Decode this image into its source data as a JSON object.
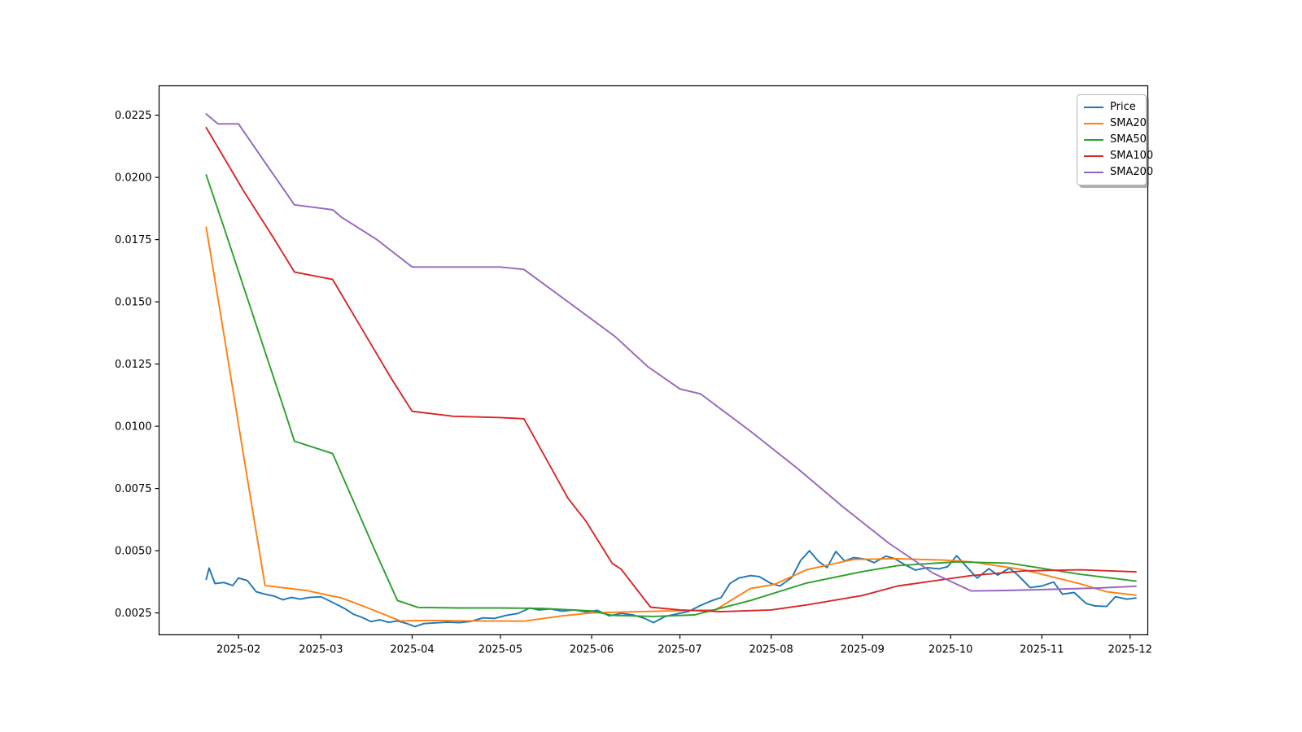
{
  "chart_data": {
    "type": "line",
    "title": "",
    "xlabel": "",
    "ylabel": "",
    "grid": false,
    "legend_position": "upper right",
    "xlim": [
      "2025-01-05",
      "2025-12-07"
    ],
    "ylim": [
      0.00162,
      0.02368
    ],
    "x_ticks": [
      {
        "date": "2025-02-01",
        "label": "2025-02"
      },
      {
        "date": "2025-03-01",
        "label": "2025-03"
      },
      {
        "date": "2025-04-01",
        "label": "2025-04"
      },
      {
        "date": "2025-05-01",
        "label": "2025-05"
      },
      {
        "date": "2025-06-01",
        "label": "2025-06"
      },
      {
        "date": "2025-07-01",
        "label": "2025-07"
      },
      {
        "date": "2025-08-01",
        "label": "2025-08"
      },
      {
        "date": "2025-09-01",
        "label": "2025-09"
      },
      {
        "date": "2025-10-01",
        "label": "2025-10"
      },
      {
        "date": "2025-11-01",
        "label": "2025-11"
      },
      {
        "date": "2025-12-01",
        "label": "2025-12"
      }
    ],
    "y_ticks": [
      {
        "value": 0.0025,
        "label": "0.0025"
      },
      {
        "value": 0.005,
        "label": "0.0050"
      },
      {
        "value": 0.0075,
        "label": "0.0075"
      },
      {
        "value": 0.01,
        "label": "0.0100"
      },
      {
        "value": 0.0125,
        "label": "0.0125"
      },
      {
        "value": 0.015,
        "label": "0.0150"
      },
      {
        "value": 0.0175,
        "label": "0.0175"
      },
      {
        "value": 0.02,
        "label": "0.0200"
      },
      {
        "value": 0.0225,
        "label": "0.0225"
      }
    ],
    "series": [
      {
        "name": "Price",
        "color": "#1f77b4",
        "points": [
          [
            "2025-01-21",
            0.00385
          ],
          [
            "2025-01-22",
            0.0043
          ],
          [
            "2025-01-24",
            0.00368
          ],
          [
            "2025-01-27",
            0.00372
          ],
          [
            "2025-01-30",
            0.0036
          ],
          [
            "2025-02-01",
            0.0039
          ],
          [
            "2025-02-04",
            0.0038
          ],
          [
            "2025-02-07",
            0.00335
          ],
          [
            "2025-02-10",
            0.00325
          ],
          [
            "2025-02-13",
            0.00318
          ],
          [
            "2025-02-16",
            0.00303
          ],
          [
            "2025-02-19",
            0.00312
          ],
          [
            "2025-02-22",
            0.00305
          ],
          [
            "2025-02-25",
            0.00312
          ],
          [
            "2025-03-01",
            0.00315
          ],
          [
            "2025-03-05",
            0.00292
          ],
          [
            "2025-03-09",
            0.00268
          ],
          [
            "2025-03-12",
            0.00245
          ],
          [
            "2025-03-15",
            0.00232
          ],
          [
            "2025-03-18",
            0.00215
          ],
          [
            "2025-03-21",
            0.00222
          ],
          [
            "2025-03-24",
            0.00212
          ],
          [
            "2025-03-27",
            0.00218
          ],
          [
            "2025-03-30",
            0.00208
          ],
          [
            "2025-04-02",
            0.00195
          ],
          [
            "2025-04-05",
            0.00207
          ],
          [
            "2025-04-09",
            0.0021
          ],
          [
            "2025-04-13",
            0.00213
          ],
          [
            "2025-04-17",
            0.00211
          ],
          [
            "2025-04-21",
            0.00216
          ],
          [
            "2025-04-25",
            0.0023
          ],
          [
            "2025-04-29",
            0.00228
          ],
          [
            "2025-05-03",
            0.0024
          ],
          [
            "2025-05-07",
            0.00248
          ],
          [
            "2025-05-11",
            0.0027
          ],
          [
            "2025-05-14",
            0.00262
          ],
          [
            "2025-05-18",
            0.00266
          ],
          [
            "2025-05-22",
            0.00257
          ],
          [
            "2025-05-26",
            0.00262
          ],
          [
            "2025-05-30",
            0.00254
          ],
          [
            "2025-06-03",
            0.0026
          ],
          [
            "2025-06-07",
            0.00238
          ],
          [
            "2025-06-11",
            0.00248
          ],
          [
            "2025-06-15",
            0.00242
          ],
          [
            "2025-06-19",
            0.00228
          ],
          [
            "2025-06-22",
            0.00211
          ],
          [
            "2025-06-26",
            0.00236
          ],
          [
            "2025-06-30",
            0.00246
          ],
          [
            "2025-07-04",
            0.00256
          ],
          [
            "2025-07-08",
            0.0028
          ],
          [
            "2025-07-12",
            0.003
          ],
          [
            "2025-07-15",
            0.00312
          ],
          [
            "2025-07-18",
            0.00368
          ],
          [
            "2025-07-21",
            0.0039
          ],
          [
            "2025-07-25",
            0.004
          ],
          [
            "2025-07-28",
            0.00396
          ],
          [
            "2025-08-01",
            0.00368
          ],
          [
            "2025-08-04",
            0.00358
          ],
          [
            "2025-08-08",
            0.00392
          ],
          [
            "2025-08-11",
            0.0046
          ],
          [
            "2025-08-14",
            0.005
          ],
          [
            "2025-08-17",
            0.00458
          ],
          [
            "2025-08-20",
            0.00432
          ],
          [
            "2025-08-23",
            0.00497
          ],
          [
            "2025-08-26",
            0.00458
          ],
          [
            "2025-08-29",
            0.00472
          ],
          [
            "2025-09-02",
            0.00466
          ],
          [
            "2025-09-05",
            0.00452
          ],
          [
            "2025-09-09",
            0.00478
          ],
          [
            "2025-09-12",
            0.00468
          ],
          [
            "2025-09-16",
            0.0044
          ],
          [
            "2025-09-19",
            0.00422
          ],
          [
            "2025-09-23",
            0.00432
          ],
          [
            "2025-09-27",
            0.00427
          ],
          [
            "2025-09-30",
            0.00436
          ],
          [
            "2025-10-03",
            0.0048
          ],
          [
            "2025-10-07",
            0.00428
          ],
          [
            "2025-10-10",
            0.0039
          ],
          [
            "2025-10-14",
            0.00428
          ],
          [
            "2025-10-17",
            0.00402
          ],
          [
            "2025-10-21",
            0.0043
          ],
          [
            "2025-10-24",
            0.004
          ],
          [
            "2025-10-28",
            0.00352
          ],
          [
            "2025-11-01",
            0.00358
          ],
          [
            "2025-11-05",
            0.00374
          ],
          [
            "2025-11-08",
            0.00325
          ],
          [
            "2025-11-12",
            0.00332
          ],
          [
            "2025-11-16",
            0.00288
          ],
          [
            "2025-11-19",
            0.00278
          ],
          [
            "2025-11-23",
            0.00276
          ],
          [
            "2025-11-26",
            0.00315
          ],
          [
            "2025-11-30",
            0.00305
          ],
          [
            "2025-12-03",
            0.0031
          ]
        ]
      },
      {
        "name": "SMA20",
        "color": "#ff7f0e",
        "points": [
          [
            "2025-01-21",
            0.018
          ],
          [
            "2025-01-27",
            0.0137
          ],
          [
            "2025-02-03",
            0.0086
          ],
          [
            "2025-02-10",
            0.0036
          ],
          [
            "2025-02-24",
            0.0034
          ],
          [
            "2025-03-08",
            0.0031
          ],
          [
            "2025-03-17",
            0.0027
          ],
          [
            "2025-03-28",
            0.00218
          ],
          [
            "2025-04-07",
            0.0022
          ],
          [
            "2025-04-21",
            0.00218
          ],
          [
            "2025-05-09",
            0.00217
          ],
          [
            "2025-05-22",
            0.00238
          ],
          [
            "2025-06-01",
            0.0025
          ],
          [
            "2025-06-14",
            0.00254
          ],
          [
            "2025-06-28",
            0.00258
          ],
          [
            "2025-07-13",
            0.00262
          ],
          [
            "2025-07-25",
            0.00348
          ],
          [
            "2025-08-02",
            0.00364
          ],
          [
            "2025-08-13",
            0.00423
          ],
          [
            "2025-08-29",
            0.00465
          ],
          [
            "2025-09-13",
            0.00468
          ],
          [
            "2025-09-29",
            0.00462
          ],
          [
            "2025-10-08",
            0.00455
          ],
          [
            "2025-10-26",
            0.00423
          ],
          [
            "2025-11-14",
            0.00367
          ],
          [
            "2025-11-23",
            0.00335
          ],
          [
            "2025-12-03",
            0.00321
          ]
        ]
      },
      {
        "name": "SMA50",
        "color": "#2ca02c",
        "points": [
          [
            "2025-01-21",
            0.0201
          ],
          [
            "2025-01-27",
            0.018
          ],
          [
            "2025-02-03",
            0.0155
          ],
          [
            "2025-02-10",
            0.013
          ],
          [
            "2025-02-17",
            0.0105
          ],
          [
            "2025-02-20",
            0.0094
          ],
          [
            "2025-03-05",
            0.0089
          ],
          [
            "2025-03-12",
            0.007
          ],
          [
            "2025-03-19",
            0.0051
          ],
          [
            "2025-03-27",
            0.003
          ],
          [
            "2025-04-03",
            0.00272
          ],
          [
            "2025-04-17",
            0.0027
          ],
          [
            "2025-05-01",
            0.0027
          ],
          [
            "2025-05-15",
            0.00268
          ],
          [
            "2025-06-01",
            0.00258
          ],
          [
            "2025-06-08",
            0.0024
          ],
          [
            "2025-06-22",
            0.00236
          ],
          [
            "2025-07-06",
            0.00242
          ],
          [
            "2025-07-25",
            0.003
          ],
          [
            "2025-08-13",
            0.0037
          ],
          [
            "2025-09-01",
            0.00416
          ],
          [
            "2025-09-13",
            0.0044
          ],
          [
            "2025-10-03",
            0.00455
          ],
          [
            "2025-10-21",
            0.0045
          ],
          [
            "2025-11-14",
            0.00405
          ],
          [
            "2025-12-03",
            0.00378
          ]
        ]
      },
      {
        "name": "SMA100",
        "color": "#d62728",
        "points": [
          [
            "2025-01-21",
            0.022
          ],
          [
            "2025-02-03",
            0.0194
          ],
          [
            "2025-02-13",
            0.01755
          ],
          [
            "2025-02-20",
            0.0162
          ],
          [
            "2025-03-05",
            0.0159
          ],
          [
            "2025-03-15",
            0.0139
          ],
          [
            "2025-03-25",
            0.0119
          ],
          [
            "2025-04-01",
            0.0106
          ],
          [
            "2025-04-15",
            0.0104
          ],
          [
            "2025-05-01",
            0.01035
          ],
          [
            "2025-05-09",
            0.0103
          ],
          [
            "2025-05-24",
            0.0071
          ],
          [
            "2025-05-30",
            0.0062
          ],
          [
            "2025-06-08",
            0.00449
          ],
          [
            "2025-06-11",
            0.00426
          ],
          [
            "2025-06-21",
            0.00273
          ],
          [
            "2025-07-01",
            0.00262
          ],
          [
            "2025-07-15",
            0.00255
          ],
          [
            "2025-08-01",
            0.00262
          ],
          [
            "2025-08-13",
            0.00282
          ],
          [
            "2025-09-01",
            0.0032
          ],
          [
            "2025-09-13",
            0.00358
          ],
          [
            "2025-10-08",
            0.004
          ],
          [
            "2025-10-26",
            0.00419
          ],
          [
            "2025-11-14",
            0.00423
          ],
          [
            "2025-12-03",
            0.00415
          ]
        ]
      },
      {
        "name": "SMA200",
        "color": "#9467bd",
        "points": [
          [
            "2025-01-21",
            0.02255
          ],
          [
            "2025-01-25",
            0.02215
          ],
          [
            "2025-02-01",
            0.02215
          ],
          [
            "2025-02-10",
            0.0206
          ],
          [
            "2025-02-20",
            0.0189
          ],
          [
            "2025-03-05",
            0.0187
          ],
          [
            "2025-03-08",
            0.0184
          ],
          [
            "2025-03-20",
            0.0175
          ],
          [
            "2025-04-01",
            0.0164
          ],
          [
            "2025-04-15",
            0.0164
          ],
          [
            "2025-05-01",
            0.0164
          ],
          [
            "2025-05-09",
            0.0163
          ],
          [
            "2025-05-24",
            0.015
          ],
          [
            "2025-06-09",
            0.0136
          ],
          [
            "2025-06-20",
            0.0124
          ],
          [
            "2025-07-01",
            0.0115
          ],
          [
            "2025-07-08",
            0.0113
          ],
          [
            "2025-07-25",
            0.0098
          ],
          [
            "2025-08-10",
            0.0083
          ],
          [
            "2025-08-25",
            0.0068
          ],
          [
            "2025-09-10",
            0.0053
          ],
          [
            "2025-09-25",
            0.0041
          ],
          [
            "2025-10-08",
            0.00338
          ],
          [
            "2025-10-20",
            0.0034
          ],
          [
            "2025-11-05",
            0.00345
          ],
          [
            "2025-11-20",
            0.0035
          ],
          [
            "2025-12-03",
            0.00357
          ]
        ]
      }
    ]
  }
}
